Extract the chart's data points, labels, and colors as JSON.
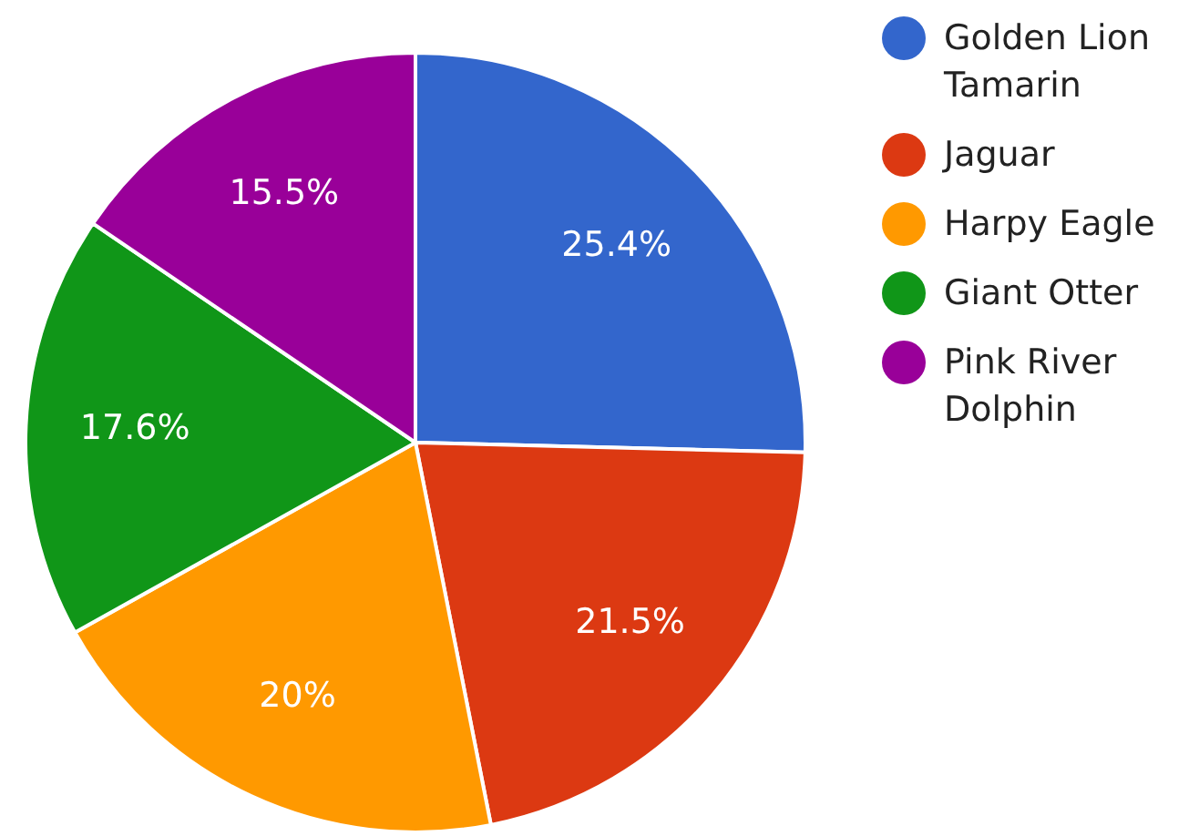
{
  "chart_data": {
    "type": "pie",
    "categories": [
      "Golden Lion Tamarin",
      "Jaguar",
      "Harpy Eagle",
      "Giant Otter",
      "Pink River Dolphin"
    ],
    "values": [
      25.4,
      21.5,
      20,
      17.6,
      15.5
    ],
    "colors": [
      "#3366cc",
      "#dc3912",
      "#ff9900",
      "#109618",
      "#990099"
    ],
    "value_labels": [
      "25.4%",
      "21.5%",
      "20%",
      "17.6%",
      "15.5%"
    ],
    "legend": "top right"
  }
}
